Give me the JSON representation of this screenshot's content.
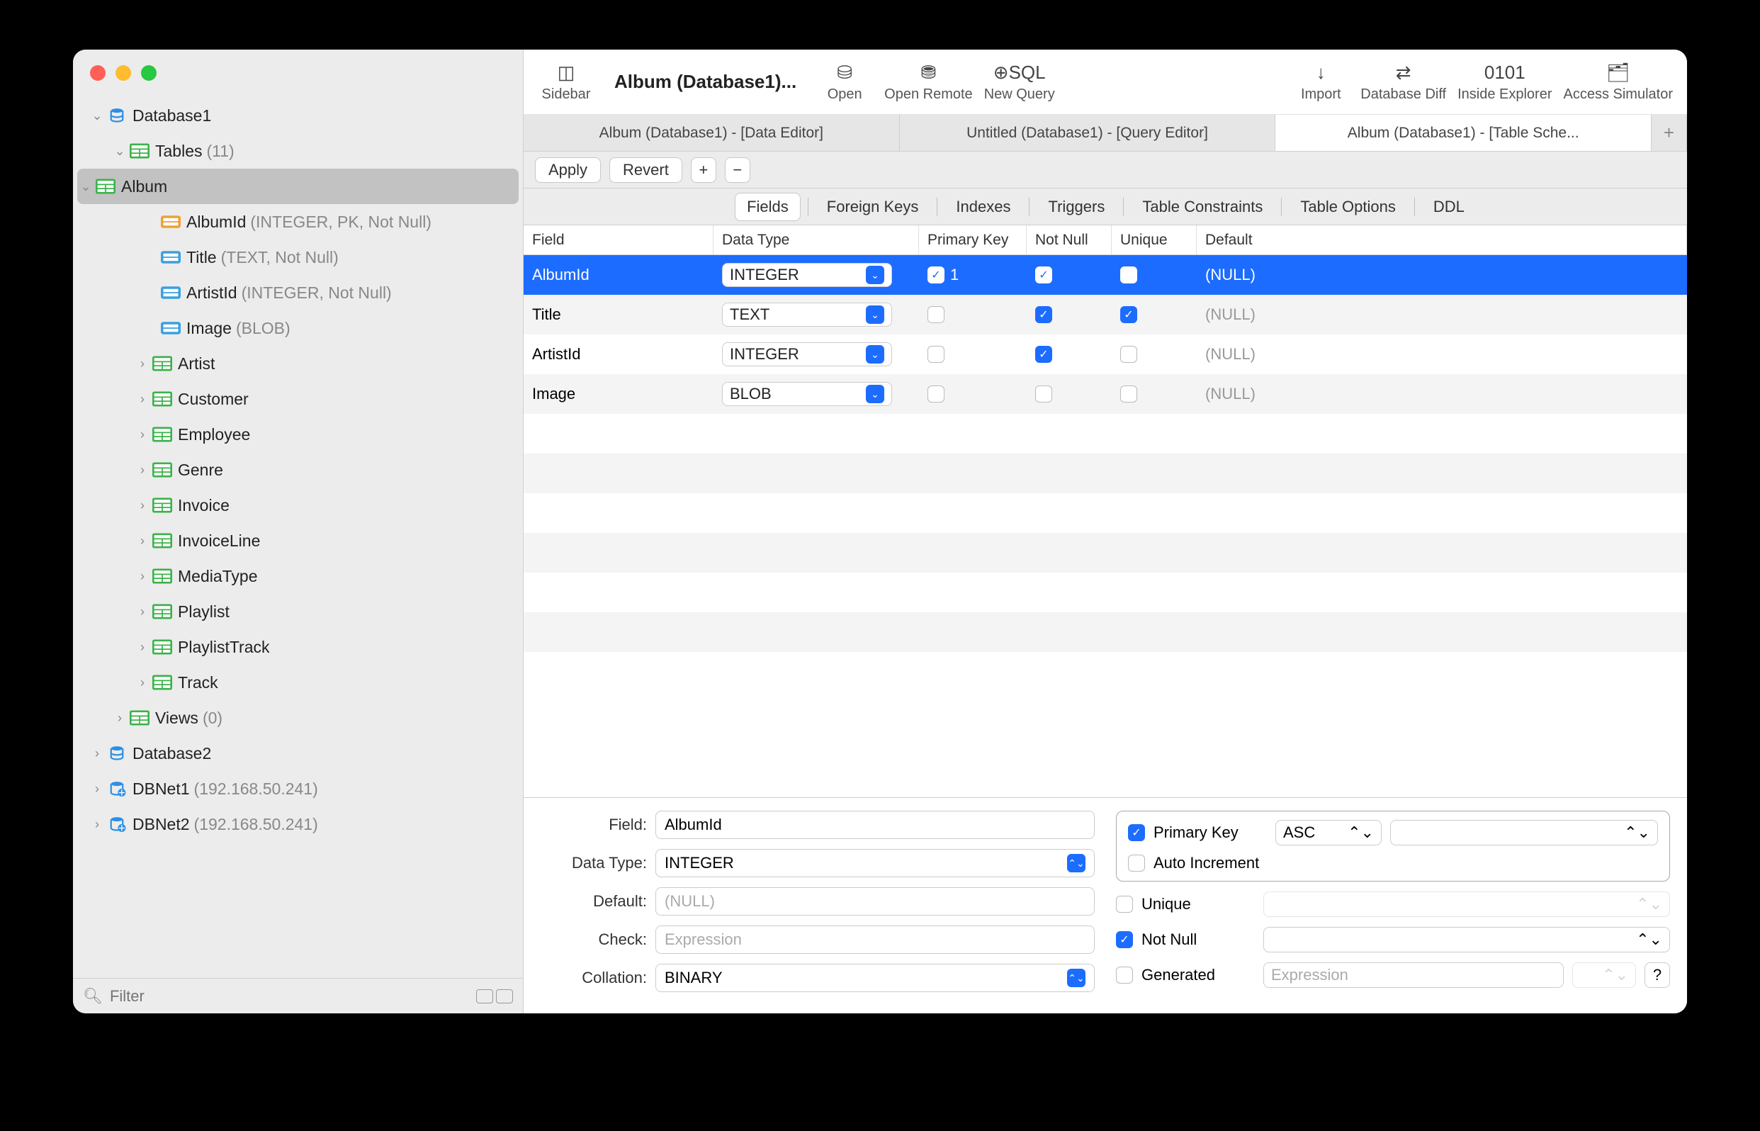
{
  "toolbar": {
    "sidebar": "Sidebar",
    "title": "Album (Database1)...",
    "open": "Open",
    "open_remote": "Open Remote",
    "new_query": "New Query",
    "import": "Import",
    "db_diff": "Database Diff",
    "inside_explorer": "Inside Explorer",
    "access_sim": "Access Simulator",
    "sql_label": "⊕SQL",
    "binary_label": "0101"
  },
  "tabs": [
    {
      "label": "Album (Database1) - [Data Editor]",
      "active": false
    },
    {
      "label": "Untitled (Database1) - [Query Editor]",
      "active": false
    },
    {
      "label": "Album (Database1) - [Table Sche...",
      "active": true
    }
  ],
  "actions": {
    "apply": "Apply",
    "revert": "Revert"
  },
  "segments": [
    "Fields",
    "Foreign Keys",
    "Indexes",
    "Triggers",
    "Table Constraints",
    "Table Options",
    "DDL"
  ],
  "active_segment": 0,
  "field_headers": {
    "field": "Field",
    "type": "Data Type",
    "pk": "Primary Key",
    "nn": "Not Null",
    "uq": "Unique",
    "def": "Default"
  },
  "fields": [
    {
      "name": "AlbumId",
      "type": "INTEGER",
      "pk": true,
      "pk_order": "1",
      "nn": true,
      "uq": false,
      "def": "(NULL)",
      "selected": true
    },
    {
      "name": "Title",
      "type": "TEXT",
      "pk": false,
      "nn": true,
      "uq": true,
      "def": "(NULL)",
      "selected": false
    },
    {
      "name": "ArtistId",
      "type": "INTEGER",
      "pk": false,
      "nn": true,
      "uq": false,
      "def": "(NULL)",
      "selected": false
    },
    {
      "name": "Image",
      "type": "BLOB",
      "pk": false,
      "nn": false,
      "uq": false,
      "def": "(NULL)",
      "selected": false
    }
  ],
  "detail": {
    "field_label": "Field:",
    "field_value": "AlbumId",
    "type_label": "Data Type:",
    "type_value": "INTEGER",
    "default_label": "Default:",
    "default_ph": "(NULL)",
    "check_label": "Check:",
    "check_ph": "Expression",
    "collation_label": "Collation:",
    "collation_value": "BINARY",
    "pk_label": "Primary Key",
    "pk_checked": true,
    "pk_order": "ASC",
    "autoinc_label": "Auto Increment",
    "autoinc_checked": false,
    "unique_label": "Unique",
    "unique_checked": false,
    "notnull_label": "Not Null",
    "notnull_checked": true,
    "generated_label": "Generated",
    "generated_checked": false,
    "generated_ph": "Expression",
    "help": "?"
  },
  "sidebar": {
    "filter_ph": "Filter",
    "db1": "Database1",
    "tables_label": "Tables",
    "tables_count": "(11)",
    "album": "Album",
    "columns": [
      {
        "name": "AlbumId",
        "meta": "(INTEGER, PK, Not Null)",
        "icon": "pk"
      },
      {
        "name": "Title",
        "meta": "(TEXT, Not Null)",
        "icon": "col"
      },
      {
        "name": "ArtistId",
        "meta": "(INTEGER, Not Null)",
        "icon": "col"
      },
      {
        "name": "Image",
        "meta": "(BLOB)",
        "icon": "col"
      }
    ],
    "other_tables": [
      "Artist",
      "Customer",
      "Employee",
      "Genre",
      "Invoice",
      "InvoiceLine",
      "MediaType",
      "Playlist",
      "PlaylistTrack",
      "Track"
    ],
    "views_label": "Views",
    "views_count": "(0)",
    "db2": "Database2",
    "dbn1": "DBNet1",
    "dbn1_meta": "(192.168.50.241)",
    "dbn2": "DBNet2",
    "dbn2_meta": "(192.168.50.241)"
  }
}
